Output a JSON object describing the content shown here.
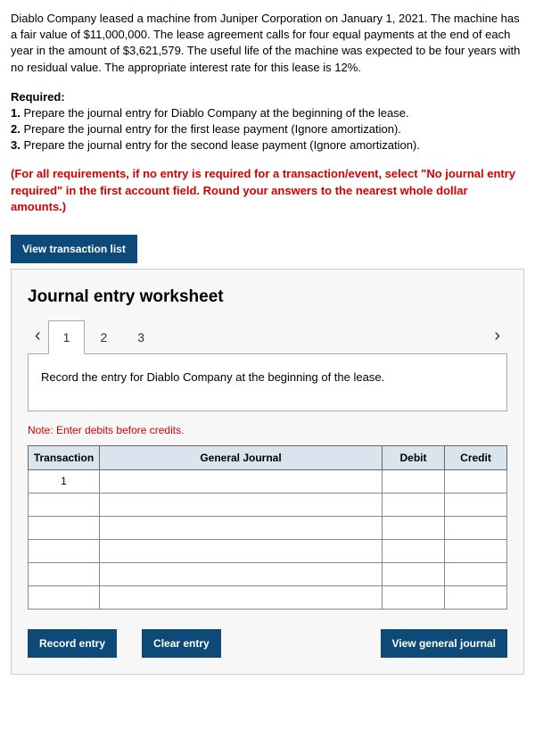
{
  "problem": {
    "paragraph": "Diablo Company leased a machine from Juniper Corporation on January 1, 2021. The machine has a fair value of $11,000,000. The lease agreement calls for four equal payments at the end of each year in the amount of $3,621,579. The useful life of the machine was expected to be four years with no residual value. The appropriate interest rate for this lease is 12%.",
    "required_label": "Required:",
    "req1_num": "1.",
    "req1_text": " Prepare the journal entry for Diablo Company at the beginning of the lease.",
    "req2_num": "2.",
    "req2_text": " Prepare the journal entry for the first lease payment (Ignore amortization).",
    "req3_num": "3.",
    "req3_text": " Prepare the journal entry for the second lease payment (Ignore amortization).",
    "instruction": "(For all requirements, if no entry is required for a transaction/event, select \"No journal entry required\" in the first account field. Round your answers to the nearest whole dollar amounts.)"
  },
  "buttons": {
    "view_list": "View transaction list",
    "record": "Record entry",
    "clear": "Clear entry",
    "view_journal": "View general journal"
  },
  "worksheet": {
    "title": "Journal entry worksheet",
    "tabs": {
      "t1": "1",
      "t2": "2",
      "t3": "3"
    },
    "prompt": "Record the entry for Diablo Company at the beginning of the lease.",
    "note": "Note: Enter debits before credits.",
    "headers": {
      "transaction": "Transaction",
      "general_journal": "General Journal",
      "debit": "Debit",
      "credit": "Credit"
    },
    "rows": {
      "r1_trans": "1"
    },
    "nav": {
      "left": "‹",
      "right": "›"
    }
  }
}
